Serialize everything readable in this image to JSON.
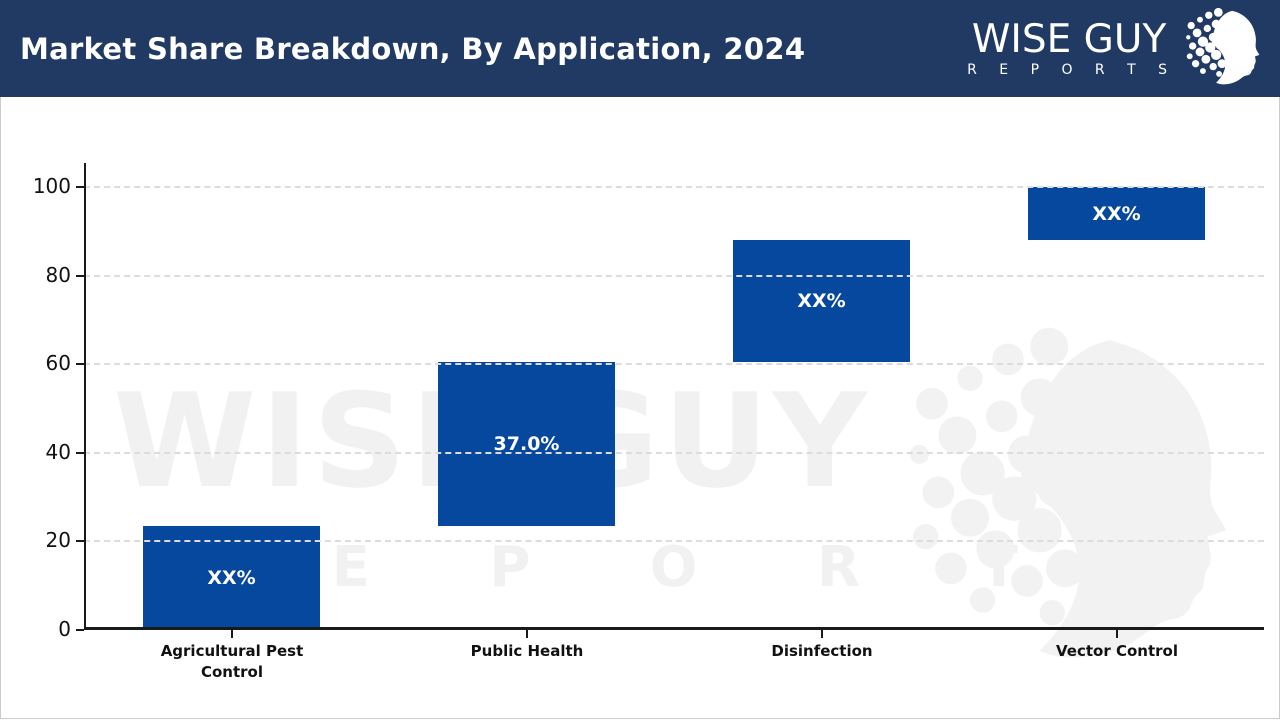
{
  "header": {
    "title": "Market Share Breakdown, By Application, 2024",
    "bg_color": "#203A63",
    "logo": {
      "line1": "WISE GUY",
      "line2": "R E P O R T S"
    }
  },
  "watermark": {
    "line1": "WISE GUY",
    "line2": "R E P O R T S"
  },
  "chart_data": {
    "type": "bar",
    "subtype": "waterfall",
    "title": "Market Share Breakdown, By Application, 2024",
    "xlabel": "",
    "ylabel": "",
    "categories": [
      "Agricultural Pest Control",
      "Public Health",
      "Disinfection",
      "Vector Control"
    ],
    "segments": [
      {
        "category": "Agricultural Pest Control",
        "start": 0,
        "end": 23.5,
        "label": "XX%"
      },
      {
        "category": "Public Health",
        "start": 23.5,
        "end": 60.5,
        "label": "37.0%"
      },
      {
        "category": "Disinfection",
        "start": 60.5,
        "end": 88,
        "label": "XX%"
      },
      {
        "category": "Vector Control",
        "start": 88,
        "end": 100,
        "label": "XX%"
      }
    ],
    "yticks": [
      0,
      20,
      40,
      60,
      80,
      100
    ],
    "ylim": [
      0,
      105
    ],
    "grid": "horizontal-dashed",
    "legend": "none",
    "bar_color": "#05489E",
    "bar_label_color": "#FFFFFF",
    "gridline_color": "#DCDCDC",
    "axis_color": "#1A1A1A"
  }
}
